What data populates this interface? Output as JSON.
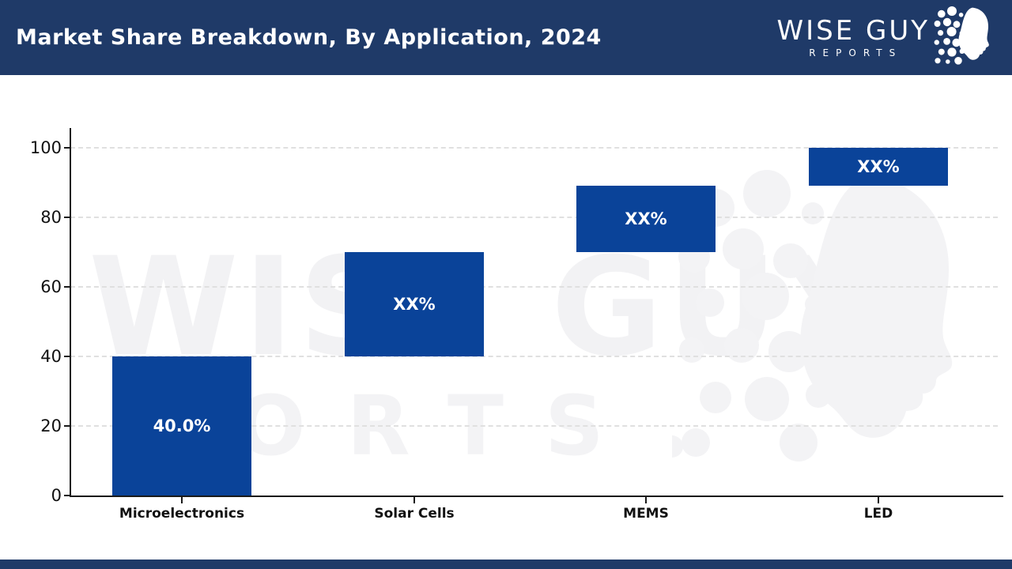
{
  "header": {
    "title": "Market Share Breakdown, By Application, 2024",
    "bg_color": "#1f3a68",
    "logo": {
      "line1": "WISE GUY",
      "line2": "REPORTS"
    }
  },
  "watermark": {
    "line1": "WISE GUY",
    "line2": "PORTS"
  },
  "footer": {
    "bg_color": "#1f3a68"
  },
  "chart_data": {
    "type": "bar",
    "subtype": "waterfall",
    "title": "Market Share Breakdown, By Application, 2024",
    "categories": [
      "Microelectronics",
      "Solar Cells",
      "MEMS",
      "LED"
    ],
    "series": [
      {
        "name": "Market Share (%)",
        "segments": [
          {
            "category": "Microelectronics",
            "start": 0,
            "end": 40,
            "value": 40,
            "label": "40.0%"
          },
          {
            "category": "Solar Cells",
            "start": 40,
            "end": 70,
            "value": 30,
            "label": "XX%"
          },
          {
            "category": "MEMS",
            "start": 70,
            "end": 89,
            "value": 19,
            "label": "XX%"
          },
          {
            "category": "LED",
            "start": 89,
            "end": 100,
            "value": 11,
            "label": "XX%"
          }
        ]
      }
    ],
    "yticks": [
      0,
      20,
      40,
      60,
      80,
      100
    ],
    "ylim": [
      0,
      105
    ],
    "xlabel": "",
    "ylabel": "",
    "grid": "horizontal-dashed",
    "legend": "none",
    "bar_color": "#0a4399",
    "bar_label_color": "#ffffff"
  }
}
